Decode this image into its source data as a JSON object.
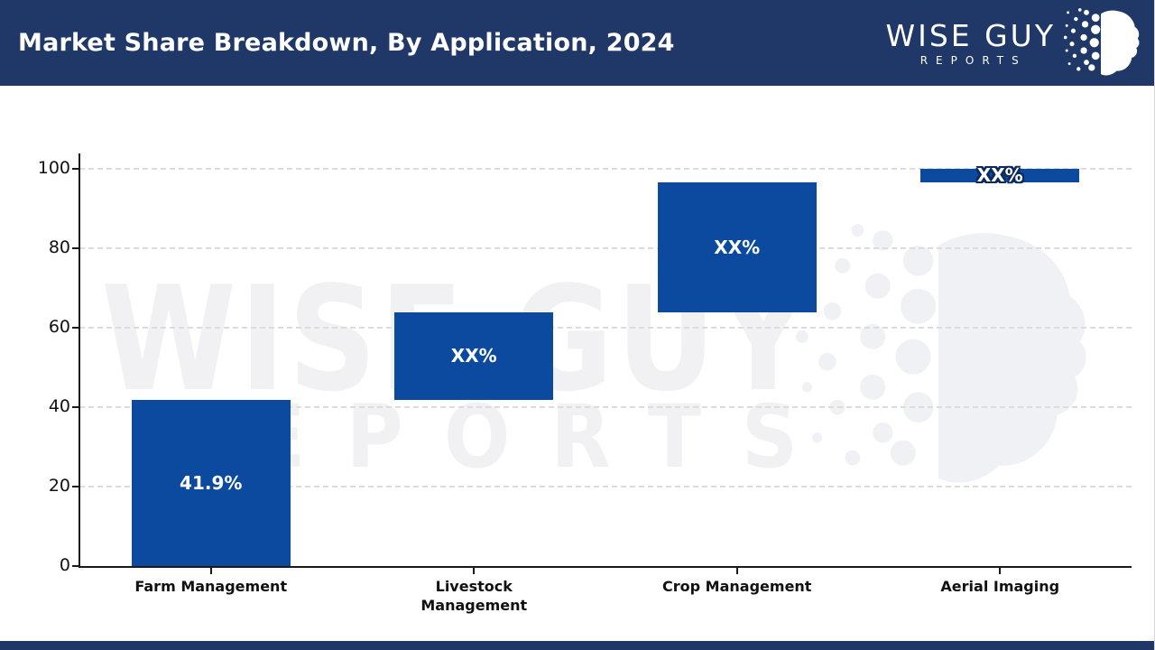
{
  "header": {
    "title": "Market Share Breakdown, By Application, 2024",
    "logo": {
      "line1": "WISE GUY",
      "line2": "REPORTS"
    }
  },
  "watermark": {
    "line1": "WISE GUY",
    "line2": "REPORTS"
  },
  "chart_data": {
    "type": "bar",
    "subtype": "floating-waterfall",
    "title": "Market Share Breakdown, By Application, 2024",
    "categories": [
      "Farm Management",
      "Livestock Management",
      "Crop Management",
      "Aerial Imaging"
    ],
    "bars": [
      {
        "category": "Farm Management",
        "start": 0,
        "end": 41.9,
        "label": "41.9%"
      },
      {
        "category": "Livestock Management",
        "start": 41.9,
        "end": 63.9,
        "label": "XX%"
      },
      {
        "category": "Crop Management",
        "start": 63.9,
        "end": 96.6,
        "label": "XX%"
      },
      {
        "category": "Aerial Imaging",
        "start": 96.6,
        "end": 100,
        "label": "XX%"
      }
    ],
    "ylim": [
      0,
      100
    ],
    "yticks": [
      0,
      20,
      40,
      60,
      80,
      100
    ],
    "xlabel": "",
    "ylabel": "",
    "grid": {
      "axis": "y",
      "style": "dashed",
      "color": "#dcdcdc"
    },
    "legend": "none",
    "bar_color": "#0b4a9f",
    "value_label_color": "#ffffff"
  },
  "colors": {
    "header_bg": "#1f3868",
    "footer_bg": "#1f3868",
    "canvas_bg": "#ffffff",
    "bar": "#0b4a9f",
    "axis": "#1a1a1a",
    "grid": "#dcdcdc",
    "watermark": "#f1f1f3",
    "title_text": "#ffffff",
    "label_text": "#111111"
  }
}
